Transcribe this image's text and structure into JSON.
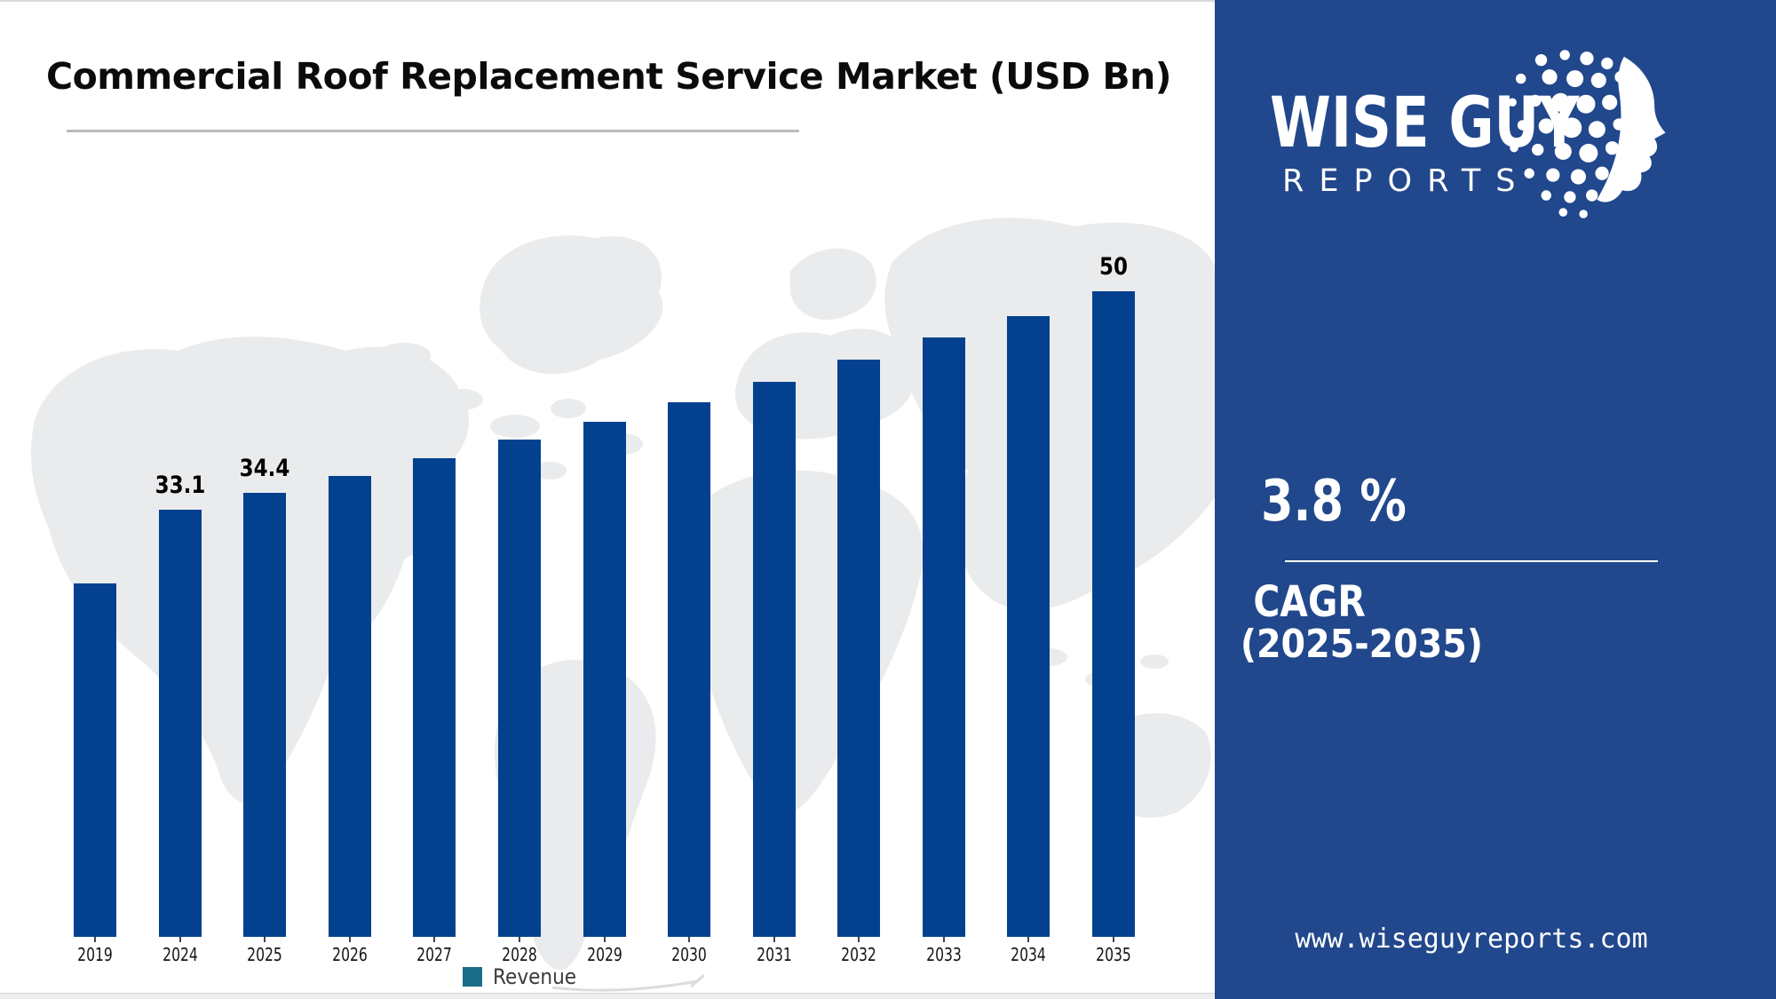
{
  "title": "Commercial Roof Replacement Service Market (USD Bn)",
  "chart_data": {
    "type": "bar",
    "title": "Commercial Roof Replacement Service Market (USD Bn)",
    "xlabel": "",
    "ylabel": "",
    "categories": [
      "2019",
      "2024",
      "2025",
      "2026",
      "2027",
      "2028",
      "2029",
      "2030",
      "2031",
      "2032",
      "2033",
      "2034",
      "2035"
    ],
    "series": [
      {
        "name": "Revenue",
        "values": [
          27.4,
          33.1,
          34.4,
          35.7,
          37.1,
          38.5,
          39.9,
          41.4,
          43.0,
          44.7,
          46.4,
          48.1,
          50
        ]
      }
    ],
    "data_labels": {
      "2024": "33.1",
      "2025": "34.4",
      "2035": "50"
    },
    "ylim": [
      0,
      50
    ],
    "grid": false,
    "legend": {
      "position": "bottom",
      "label": "Revenue",
      "swatch_color": "#1b6d87"
    },
    "bar_color": "#03418f",
    "background_watermark": "world-map",
    "watermark_color": "#e9ebed"
  },
  "sidebar": {
    "background": "#21478c",
    "logo": {
      "line1": "WISE GUY",
      "line2": "REPORTS"
    },
    "cagr": {
      "value": "3.8 %",
      "label": "CAGR",
      "period": "(2025-2035)"
    },
    "website": "www.wiseguyreports.com"
  }
}
